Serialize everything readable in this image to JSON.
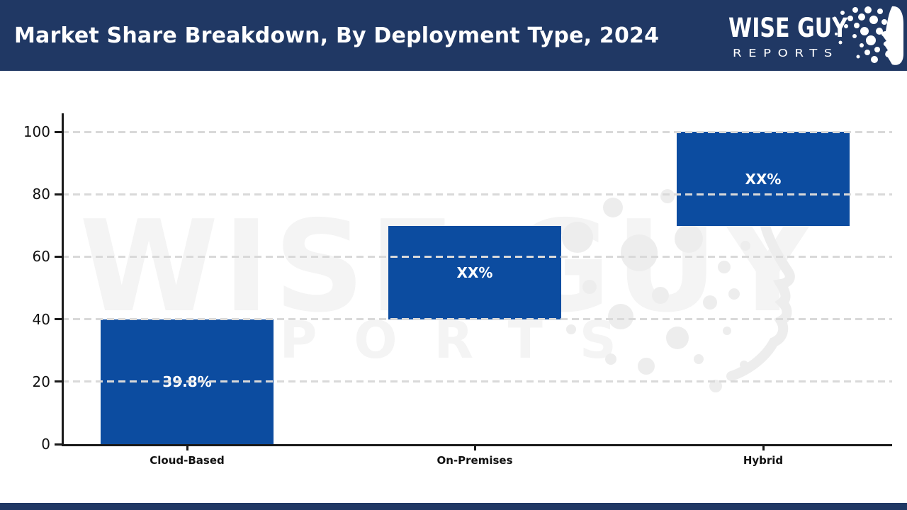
{
  "header": {
    "title": "Market Share Breakdown, By Deployment Type, 2024",
    "logo": {
      "line1": "WISE GUY",
      "line2": "REPORTS"
    }
  },
  "watermark": {
    "line1": "WISE GUY",
    "line2": "REPORTS"
  },
  "chart_data": {
    "type": "bar",
    "subtype": "stacked-waterfall-percentage",
    "title": "Market Share Breakdown, By Deployment Type, 2024",
    "categories": [
      "Cloud-Based",
      "On-Premises",
      "Hybrid"
    ],
    "segments": [
      {
        "category": "Cloud-Based",
        "start": 0,
        "end": 39.8,
        "label": "39.8%"
      },
      {
        "category": "On-Premises",
        "start": 39.8,
        "end": 69.8,
        "label": "XX%"
      },
      {
        "category": "Hybrid",
        "start": 69.8,
        "end": 100,
        "label": "XX%"
      }
    ],
    "xlabel": "",
    "ylabel": "",
    "ylim": [
      0,
      100
    ],
    "yticks": [
      0,
      20,
      40,
      60,
      80,
      100
    ],
    "grid": "horizontal-dashed",
    "legend": "none",
    "bar_color": "#0c4ca0",
    "bar_label_color": "#ffffff"
  },
  "colors": {
    "header_bg": "#203864",
    "footer_bg": "#203864",
    "bar": "#0c4ca0",
    "grid": "#d9d9d9",
    "axis": "#1a1a1a",
    "watermark": "#f4f4f4"
  }
}
